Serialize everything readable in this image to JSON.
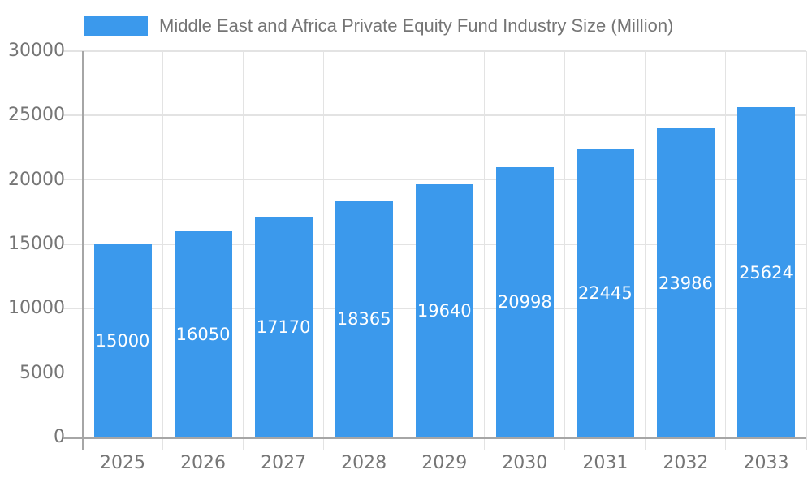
{
  "chart_data": {
    "type": "bar",
    "title": "Middle East and Africa Private Equity Fund Industry Size (Million)",
    "categories": [
      "2025",
      "2026",
      "2027",
      "2028",
      "2029",
      "2030",
      "2031",
      "2032",
      "2033"
    ],
    "values": [
      15000,
      16050,
      17170,
      18365,
      19640,
      20998,
      22445,
      23986,
      25624
    ],
    "xlabel": "",
    "ylabel": "",
    "ylim": [
      0,
      30000
    ],
    "yticks": [
      0,
      5000,
      10000,
      15000,
      20000,
      25000,
      30000
    ],
    "grid": true,
    "legend_position": "top-left",
    "bar_labels_inside": true,
    "colors": {
      "bar": "#3B99EC",
      "bar_label_text": "#FFFFFF",
      "axis_line": "#A6A6A6",
      "grid_line": "#E3E3E3",
      "tick_text": "#757575",
      "legend_text": "#757575",
      "background": "#FFFFFF"
    }
  }
}
